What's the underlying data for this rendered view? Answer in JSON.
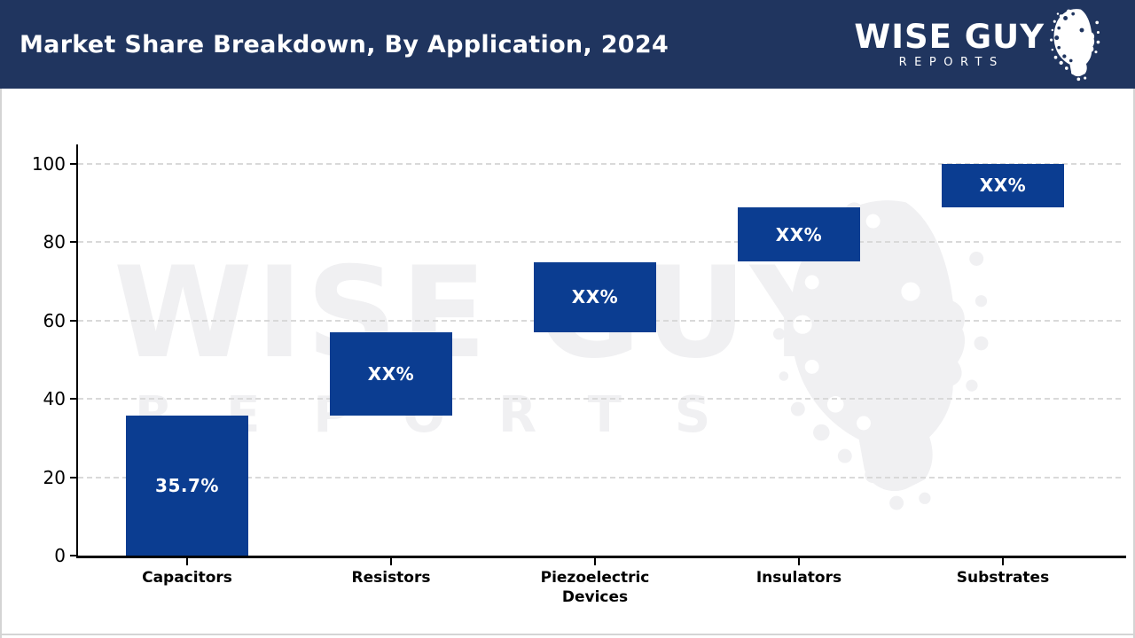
{
  "header": {
    "title": "Market Share Breakdown, By Application, 2024",
    "logo": {
      "line1": "WISE GUY",
      "line2": "REPORTS"
    }
  },
  "watermark": {
    "line1": "WISE GUY",
    "line2": "REPORTS"
  },
  "icons": {
    "logo_face": "head-profile-dots-icon",
    "watermark_face": "head-profile-dots-icon"
  },
  "colors": {
    "header_bg": "#20355f",
    "title_text": "#ffffff",
    "bar": "#0b3d91",
    "bar_label": "#ffffff",
    "grid": "#d9d9d9",
    "axis": "#000000",
    "watermark": "#f0f0f2",
    "page_border": "#d4d4d4"
  },
  "chart_data": {
    "type": "bar",
    "subtype": "waterfall",
    "title": "Market Share Breakdown, By Application, 2024",
    "xlabel": "",
    "ylabel": "",
    "categories": [
      "Capacitors",
      "Resistors",
      "Piezoelectric Devices",
      "Insulators",
      "Substrates"
    ],
    "series": [
      {
        "name": "Market Share (%)",
        "starts": [
          0,
          35.7,
          57,
          75,
          89
        ],
        "ends": [
          35.7,
          57,
          75,
          89,
          100
        ]
      }
    ],
    "bar_value_labels": [
      "35.7%",
      "XX%",
      "XX%",
      "XX%",
      "XX%"
    ],
    "ylim": [
      0,
      100
    ],
    "yticks": [
      0,
      20,
      40,
      60,
      80,
      100
    ],
    "grid": "dashed-horizontal",
    "legend": "none"
  }
}
